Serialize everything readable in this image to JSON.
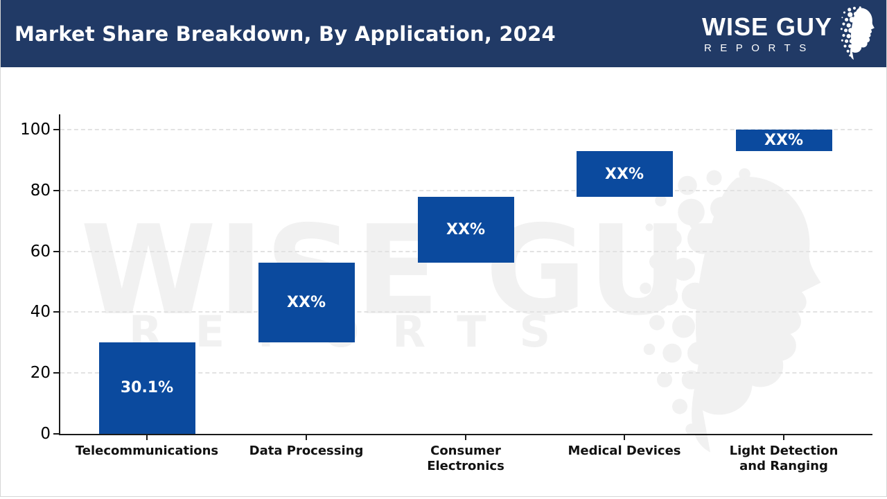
{
  "header": {
    "title": "Market Share Breakdown, By Application, 2024",
    "brand": {
      "name": "WISE GUY",
      "tagline": "REPORTS"
    }
  },
  "watermark": {
    "line1": "WISE GUY",
    "line2": "REPORTS"
  },
  "colors": {
    "header_bg": "#213a66",
    "bar": "#0b4a9e",
    "axis": "#1a1a1a",
    "grid": "#e2e2e2",
    "watermark": "#f1f1f1",
    "bar_label": "#ffffff"
  },
  "chart_data": {
    "type": "bar",
    "subtype": "waterfall",
    "title": "Market Share Breakdown, By Application, 2024",
    "xlabel": "",
    "ylabel": "",
    "ylim": [
      0,
      105
    ],
    "yticks": [
      0,
      20,
      40,
      60,
      80,
      100
    ],
    "grid": "horizontal-dashed",
    "legend": null,
    "categories": [
      "Telecommunications",
      "Data Processing",
      "Consumer Electronics",
      "Medical Devices",
      "Light Detection and Ranging"
    ],
    "category_lines": [
      [
        "Telecommunications"
      ],
      [
        "Data Processing"
      ],
      [
        "Consumer",
        "Electronics"
      ],
      [
        "Medical Devices"
      ],
      [
        "Light Detection",
        "and Ranging"
      ]
    ],
    "segments": [
      {
        "category": "Telecommunications",
        "start": 0,
        "end": 30.1,
        "value": 30.1,
        "label": "30.1%"
      },
      {
        "category": "Data Processing",
        "start": 30.1,
        "end": 56.2,
        "value": 26.1,
        "label": "XX%"
      },
      {
        "category": "Consumer Electronics",
        "start": 56.2,
        "end": 77.9,
        "value": 21.7,
        "label": "XX%"
      },
      {
        "category": "Medical Devices",
        "start": 77.9,
        "end": 92.9,
        "value": 15.0,
        "label": "XX%"
      },
      {
        "category": "Light Detection and Ranging",
        "start": 92.9,
        "end": 100,
        "value": 7.1,
        "label": "XX%"
      }
    ]
  }
}
